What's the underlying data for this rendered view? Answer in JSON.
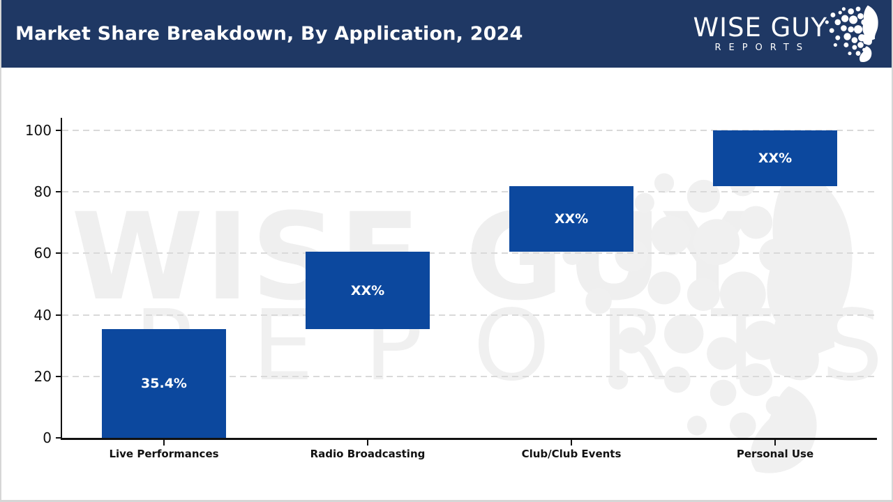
{
  "header": {
    "title": "Market Share Breakdown, By Application, 2024",
    "logo": {
      "line1": "WISE GUY",
      "line2": "REPORTS"
    }
  },
  "watermark": {
    "line1": "WISE GUY",
    "line2": "REPORTS"
  },
  "colors": {
    "header_bg": "#1f3864",
    "bar": "#0c489e",
    "grid": "#d9d9d9",
    "axis": "#111111",
    "bar_label": "#ffffff",
    "watermark": "#efefef"
  },
  "chart_data": {
    "type": "bar",
    "subtype": "waterfall",
    "title": "Market Share Breakdown, By Application, 2024",
    "xlabel": "",
    "ylabel": "",
    "categories": [
      "Live Performances",
      "Radio Broadcasting",
      "Club/Club Events",
      "Personal Use"
    ],
    "segments": [
      {
        "category": "Live Performances",
        "start": 0,
        "end": 35.4,
        "label": "35.4%"
      },
      {
        "category": "Radio Broadcasting",
        "start": 35.4,
        "end": 60.5,
        "label": "XX%"
      },
      {
        "category": "Club/Club Events",
        "start": 60.5,
        "end": 81.8,
        "label": "XX%"
      },
      {
        "category": "Personal Use",
        "start": 81.8,
        "end": 100,
        "label": "XX%"
      }
    ],
    "ylim": [
      0,
      100
    ],
    "yticks": [
      0,
      20,
      40,
      60,
      80,
      100
    ],
    "grid": "horizontal-dashed",
    "legend": "none"
  }
}
